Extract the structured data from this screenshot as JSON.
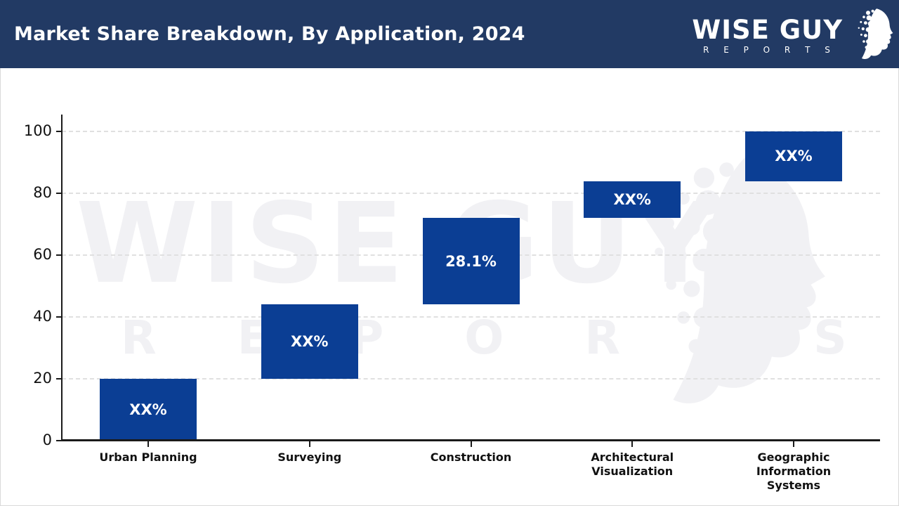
{
  "header": {
    "title": "Market Share Breakdown, By Application, 2024",
    "logo": {
      "line1": "WISE GUY",
      "line2": "R E P O R T S"
    }
  },
  "watermark": {
    "line1": "WISE GUY",
    "line2": "R E P O R T S"
  },
  "colors": {
    "header_bg": "#223a64",
    "bar": "#0b3e94",
    "grid": "#e0e0e0",
    "axis": "#1a1a1a",
    "bar_label": "#ffffff",
    "watermark": "#f1f1f4"
  },
  "chart_data": {
    "type": "bar",
    "variant": "waterfall",
    "title": "Market Share Breakdown, By Application, 2024",
    "categories": [
      "Urban Planning",
      "Surveying",
      "Construction",
      "Architectural Visualization",
      "Geographic Information Systems"
    ],
    "category_lines": [
      [
        "Urban Planning"
      ],
      [
        "Surveying"
      ],
      [
        "Construction"
      ],
      [
        "Architectural",
        "Visualization"
      ],
      [
        "Geographic",
        "Information",
        "Systems"
      ]
    ],
    "bars": [
      {
        "category": "Urban Planning",
        "start": 0,
        "end": 20,
        "label": "XX%"
      },
      {
        "category": "Surveying",
        "start": 20,
        "end": 44,
        "label": "XX%"
      },
      {
        "category": "Construction",
        "start": 44,
        "end": 72.1,
        "label": "28.1%"
      },
      {
        "category": "Architectural Visualization",
        "start": 72.1,
        "end": 83.9,
        "label": "XX%"
      },
      {
        "category": "Geographic Information Systems",
        "start": 83.9,
        "end": 100,
        "label": "XX%"
      }
    ],
    "ylim": [
      0,
      100
    ],
    "yticks": [
      0,
      20,
      40,
      60,
      80,
      100
    ],
    "grid": "dashed horizontal",
    "legend": "none",
    "xlabel": "",
    "ylabel": ""
  }
}
